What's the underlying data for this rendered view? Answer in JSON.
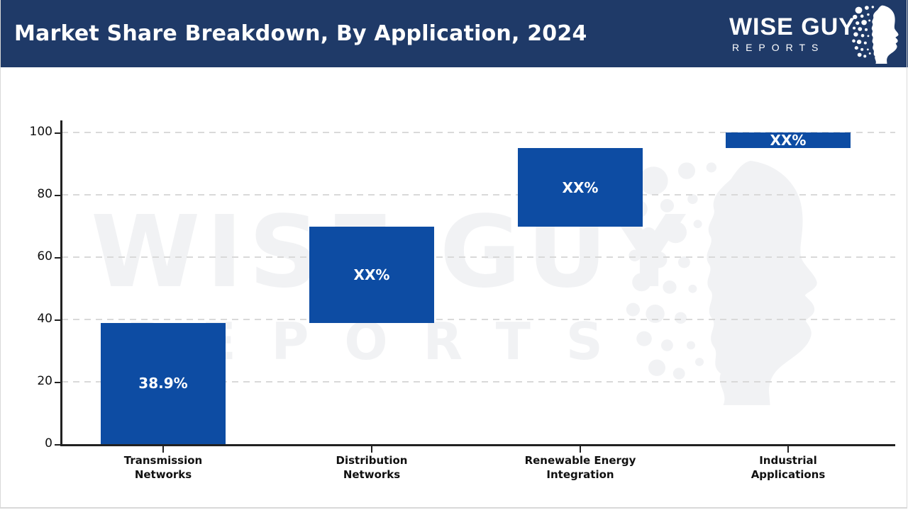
{
  "header": {
    "title": "Market Share Breakdown, By Application, 2024",
    "brand": {
      "line1": "WISE GUY",
      "line2": "REPORTS"
    }
  },
  "watermark": {
    "line1": "WISE GUY",
    "line2": "REPORTS"
  },
  "colors": {
    "header_bg": "#1f3a68",
    "bar": "#0d4ca3",
    "bar_label": "#ffffff",
    "grid": "#d9d9d9",
    "axis": "#212121",
    "watermark": "#f1f2f4"
  },
  "chart_data": {
    "type": "bar",
    "subtype": "waterfall",
    "title": "Market Share Breakdown, By Application, 2024",
    "categories": [
      "Transmission Networks",
      "Distribution Networks",
      "Renewable Energy Integration",
      "Industrial Applications"
    ],
    "bars": [
      {
        "category_lines": [
          "Transmission",
          "Networks"
        ],
        "start": 0,
        "end": 38.9,
        "label": "38.9%"
      },
      {
        "category_lines": [
          "Distribution",
          "Networks"
        ],
        "start": 38.9,
        "end": 69.8,
        "label": "XX%"
      },
      {
        "category_lines": [
          "Renewable Energy",
          "Integration"
        ],
        "start": 69.8,
        "end": 94.9,
        "label": "XX%"
      },
      {
        "category_lines": [
          "Industrial",
          "Applications"
        ],
        "start": 94.9,
        "end": 100,
        "label": "XX%"
      }
    ],
    "ylabel": "",
    "xlabel": "",
    "yticks": [
      0,
      20,
      40,
      60,
      80,
      100
    ],
    "ylim": [
      0,
      104
    ],
    "grid": {
      "axis": "y",
      "style": "dashed"
    },
    "legend": null
  }
}
